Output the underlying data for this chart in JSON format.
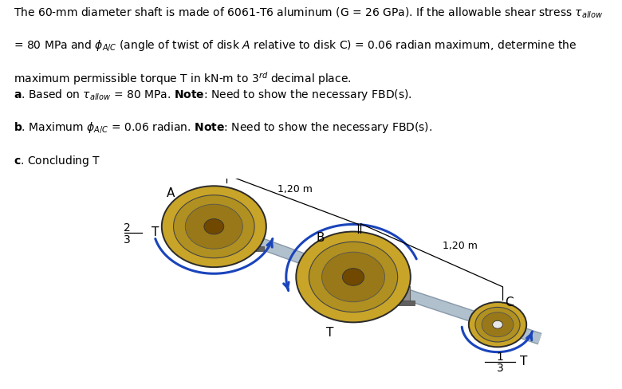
{
  "bg_color": "#ffffff",
  "text_color": "#000000",
  "disk_gold_outer": "#c8a428",
  "disk_gold_mid": "#b09020",
  "disk_gold_inner": "#987818",
  "disk_center_hole": "#704800",
  "shaft_light": "#b0c0cc",
  "shaft_mid": "#8898a8",
  "shaft_dark": "#607080",
  "support_gray": "#909090",
  "support_dark": "#606060",
  "arrow_blue": "#1a44bb",
  "dim_color": "#111111",
  "watermark_color": "#c8c8c8",
  "fig_width": 7.8,
  "fig_height": 4.88,
  "dpi": 100,
  "text_block": [
    "The 60-mm diameter shaft is made of 6061-T6 aluminum (G = 26 GPa). If the allowable shear stress $\\tau_{allow}$",
    "= 80 MPa and $\\phi_{A/C}$ (angle of twist of disk $\\mathit{A}$ relative to disk C) = 0.06 radian maximum, determine the",
    "maximum permissible torque T in kN-m to 3$^{rd}$ decimal place."
  ],
  "item_a": [
    "$\\mathbf{a}$. Based on $\\tau_{allow}$ = 80 MPa. ",
    "$\\mathbf{Note}$",
    ": Need to show the necessary FBD(s)."
  ],
  "item_b": [
    "$\\mathbf{b}$. Maximum $\\phi_{A/C}$ = 0.06 radian. ",
    "$\\mathbf{Note}$",
    ": Need to show the necessary FBD(s)."
  ],
  "item_c": "$\\mathbf{c}$. Concluding T",
  "label_120_1": "1,20 m",
  "label_120_2": "1,20 m",
  "label_A": "A",
  "label_B": "B",
  "label_C": "C",
  "label_T_mid": "T",
  "label_2T3_num": "2",
  "label_2T3_den": "3",
  "label_1T3_num": "1",
  "label_1T3_den": "3"
}
